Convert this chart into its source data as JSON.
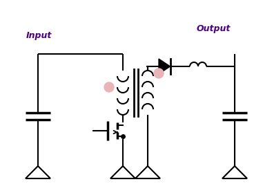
{
  "bg_color": "#ffffff",
  "line_color": "#000000",
  "dot_color": "#e8b4b8",
  "text_input": "Input",
  "text_output": "Output",
  "text_color": "#4b0082",
  "figsize": [
    3.81,
    2.79
  ],
  "dpi": 100
}
